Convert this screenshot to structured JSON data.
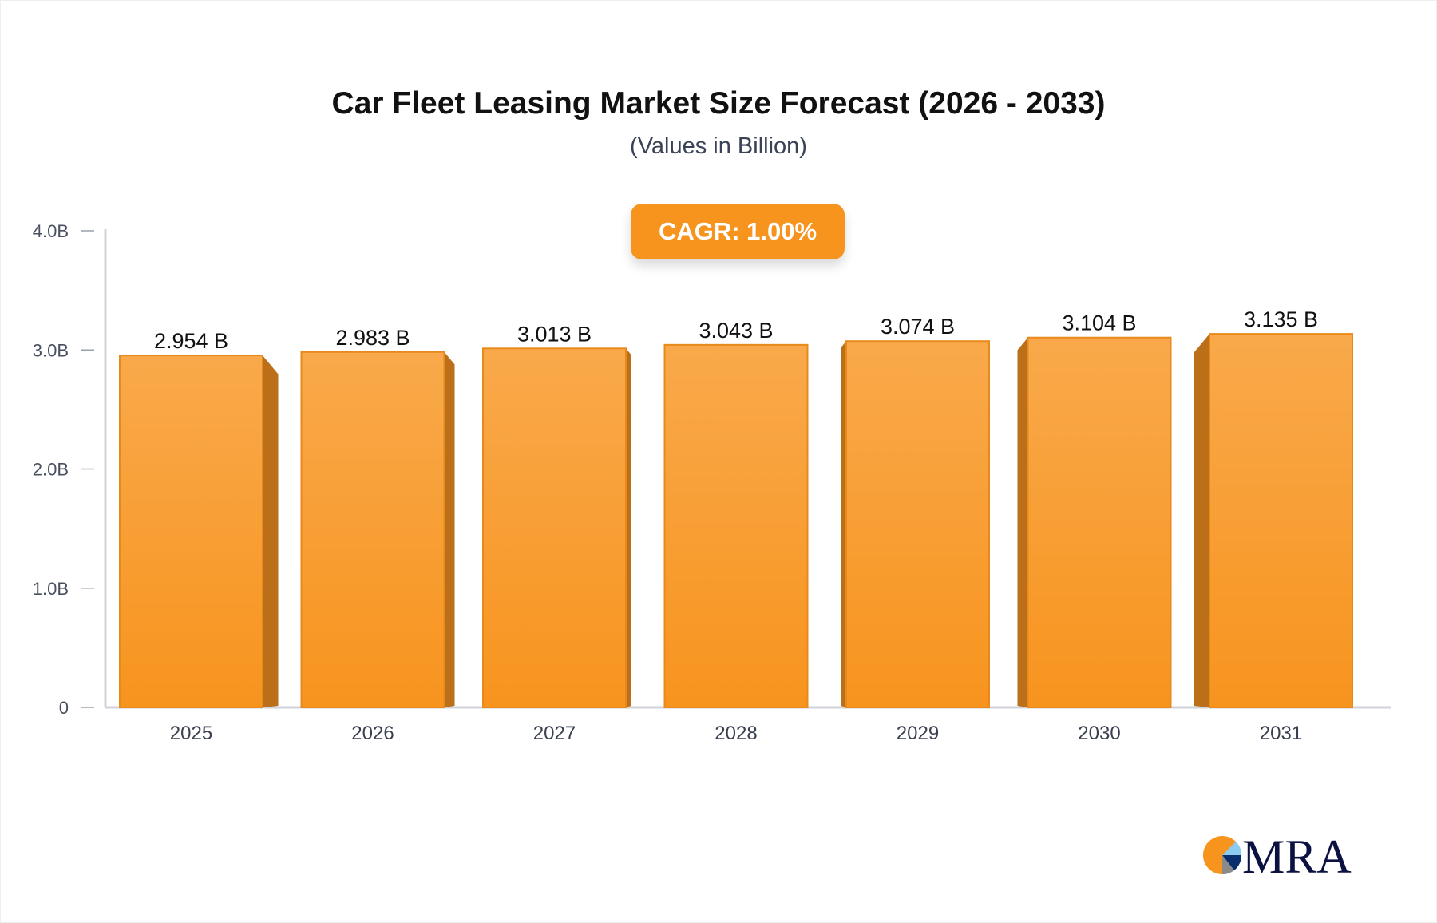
{
  "chart_data": {
    "type": "bar",
    "title": "Car Fleet Leasing Market Size Forecast (2026 - 2033)",
    "subtitle": "(Values in Billion)",
    "annotation": "CAGR: 1.00%",
    "categories": [
      "2025",
      "2026",
      "2027",
      "2028",
      "2029",
      "2030",
      "2031"
    ],
    "values": [
      2.954,
      2.983,
      3.013,
      3.043,
      3.074,
      3.104,
      3.135
    ],
    "data_labels": [
      "2.954 B",
      "2.983 B",
      "3.013 B",
      "3.043 B",
      "3.074 B",
      "3.104 B",
      "3.135 B"
    ],
    "ylim": [
      0,
      4
    ],
    "yticks": [
      0,
      1,
      2,
      3,
      4
    ],
    "ytick_labels": [
      "0",
      "1.0B",
      "2.0B",
      "3.0B",
      "4.0B"
    ],
    "xlabel": "",
    "ylabel": "",
    "grid": false,
    "colors": {
      "bar_top": "#f9a94b",
      "bar_bottom": "#f7941e",
      "bar_side": "#bb6f18",
      "axis": "#d0d3da"
    }
  },
  "logo": {
    "text": "MRA"
  }
}
